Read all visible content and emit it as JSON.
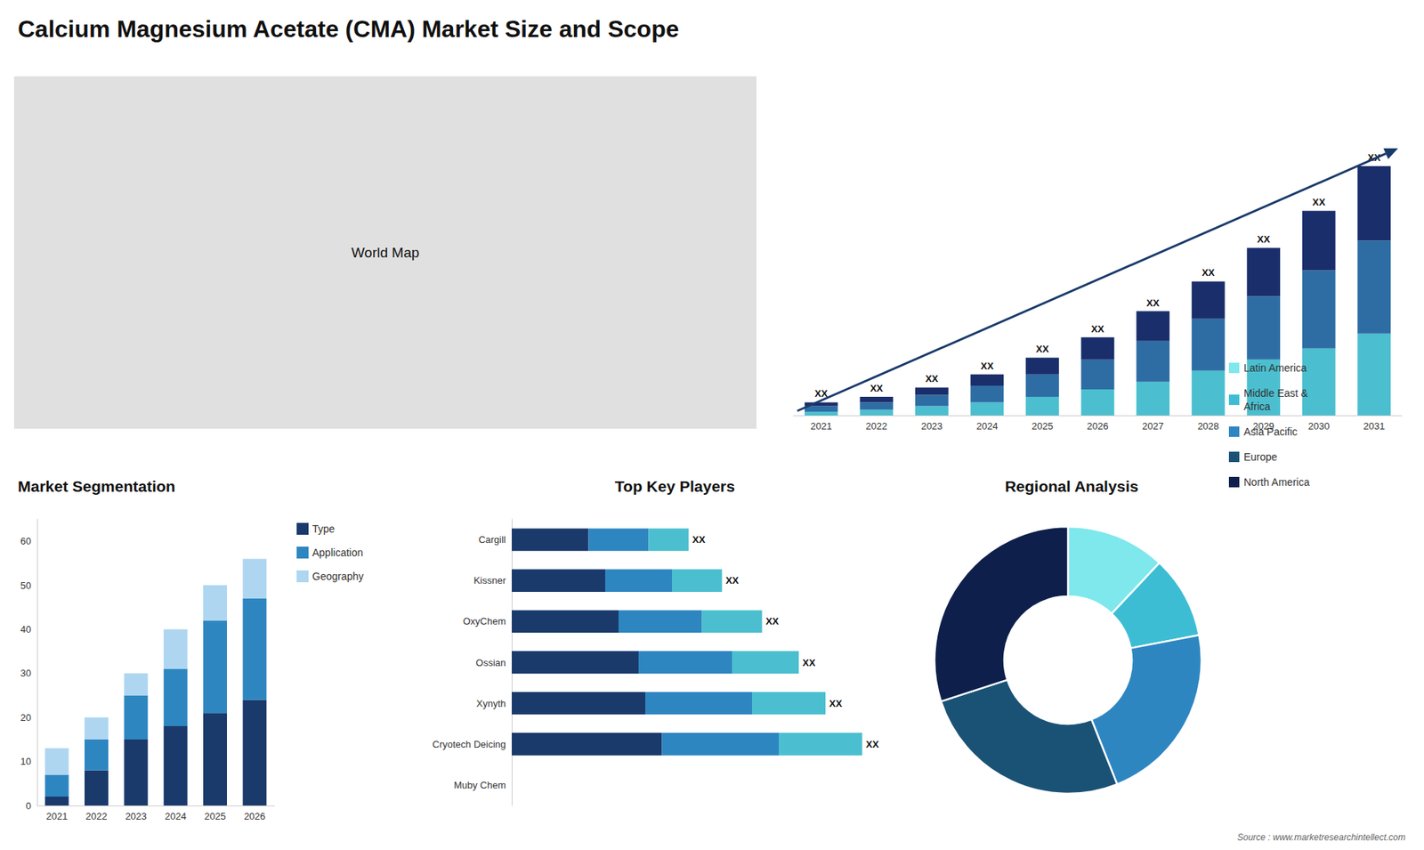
{
  "title": "Calcium Magnesium Acetate (CMA) Market Size and Scope",
  "annotations": [
    "Source : www.marketresearchintellect.com"
  ],
  "chart_data": [
    {
      "type": "map",
      "annotations": [
        "World Map"
      ],
      "color": "#e0e0e0"
    },
    {
      "type": "bar",
      "stacked": true,
      "categories": [
        2021,
        2022,
        2023,
        2024,
        2025,
        2026,
        2027,
        2028,
        2029,
        2030,
        2031
      ],
      "series": [
        {
          "color": "#4bbfcf",
          "values": [
            1.0,
            1.5,
            2.5,
            3.5,
            5.0,
            7.0,
            9.0,
            12.0,
            15.0,
            18.0,
            22.0
          ]
        },
        {
          "color": "#2e6da4",
          "values": [
            1.5,
            2.0,
            3.0,
            4.5,
            6.0,
            8.0,
            11.0,
            14.0,
            17.0,
            21.0,
            25.0
          ]
        },
        {
          "color": "#1a2e6b",
          "values": [
            1.0,
            1.5,
            2.0,
            3.0,
            4.5,
            6.0,
            8.0,
            10.0,
            13.0,
            16.0,
            20.0
          ]
        }
      ],
      "annotations": [
        "XX",
        "XX",
        "XX",
        "XX",
        "XX",
        "XX",
        "XX",
        "XX",
        "XX",
        "XX",
        "XX"
      ],
      "ylim": [
        0,
        85.76
      ],
      "tick_labels": "x",
      "grid": false
    },
    {
      "type": "bar",
      "title": "Market Segmentation",
      "stacked": true,
      "categories": [
        2021,
        2022,
        2023,
        2024,
        2025,
        2026
      ],
      "series": [
        {
          "name": "Type",
          "color": "#1a3a6b",
          "values": [
            2,
            8,
            15,
            18,
            21,
            24
          ]
        },
        {
          "name": "Application",
          "color": "#2e86c1",
          "values": [
            5,
            7,
            10,
            13,
            21,
            23
          ]
        },
        {
          "name": "Geography",
          "color": "#aed6f1",
          "values": [
            6,
            5,
            5,
            9,
            8,
            9
          ]
        }
      ],
      "ylim": [
        0,
        65
      ],
      "yticks": [
        0,
        10,
        20,
        30,
        40,
        50,
        60
      ],
      "grid": false,
      "legend": "right"
    },
    {
      "type": "bar",
      "title": "Top Key Players",
      "orientation": "horizontal",
      "stacked": true,
      "categories": [
        "Muby Chem",
        "Cryotech Deicing",
        "Xynyth",
        "Ossian",
        "OxyChem",
        "Kissner",
        "Cargill"
      ],
      "series": [
        {
          "color": "#1a3a6b",
          "values": [
            0.0,
            4.5,
            4.0,
            3.8,
            3.2,
            2.8,
            2.3
          ]
        },
        {
          "color": "#2e86c1",
          "values": [
            0.0,
            3.5,
            3.2,
            2.8,
            2.5,
            2.0,
            1.8
          ]
        },
        {
          "color": "#4bbfcf",
          "values": [
            0.0,
            2.5,
            2.2,
            2.0,
            1.8,
            1.5,
            1.2
          ]
        }
      ],
      "annotations": [
        null,
        "XX",
        "XX",
        "XX",
        "XX",
        "XX",
        "XX"
      ],
      "xlim": [
        0,
        12
      ],
      "tick_labels": "y",
      "grid": false
    },
    {
      "type": "donut",
      "title": "Regional Analysis",
      "categories": [
        "Latin America",
        "Middle East &\nAfrica",
        "Asia Pacific",
        "Europe",
        "North America"
      ],
      "values": [
        12,
        10,
        22,
        26,
        30
      ],
      "colors": [
        "#7ee8ec",
        "#3dbdd4",
        "#2e86c1",
        "#1a5276",
        "#0d1f4a"
      ],
      "legend": "right"
    }
  ]
}
